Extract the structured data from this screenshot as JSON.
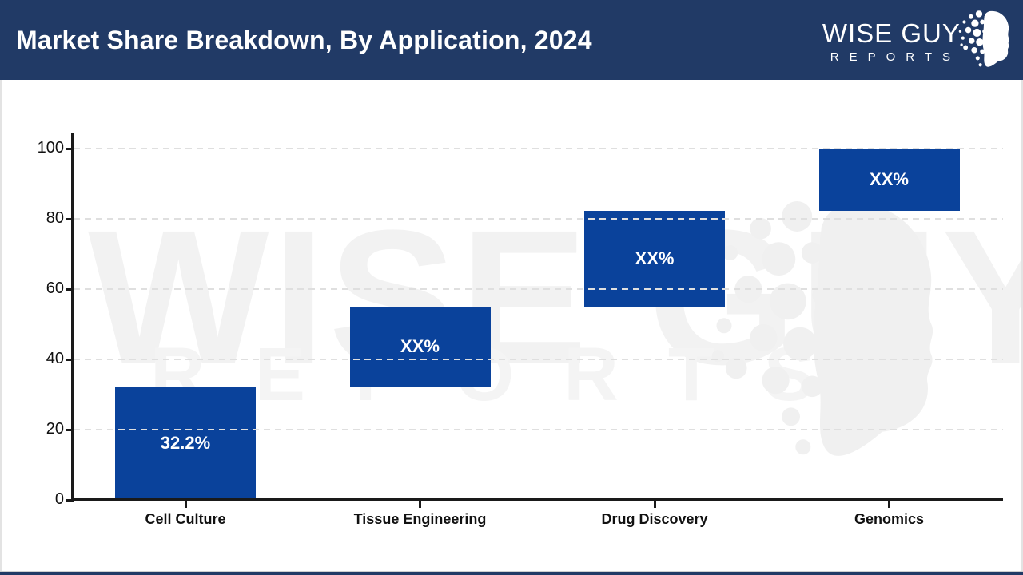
{
  "header": {
    "title": "Market Share Breakdown, By Application, 2024",
    "logo": {
      "line1": "WISE GUY",
      "line2": "REPORTS"
    }
  },
  "watermark": {
    "line1": "WISE GUY",
    "line2": "REPORTS"
  },
  "chart_data": {
    "type": "bar",
    "subtype": "waterfall",
    "title": "Market Share Breakdown, By Application, 2024",
    "categories": [
      "Cell Culture",
      "Tissue Engineering",
      "Drug Discovery",
      "Genomics"
    ],
    "segments": [
      {
        "category": "Cell Culture",
        "start": 0,
        "end": 32.2,
        "label": "32.2%"
      },
      {
        "category": "Tissue Engineering",
        "start": 32.2,
        "end": 55.0,
        "label": "XX%"
      },
      {
        "category": "Drug Discovery",
        "start": 55.0,
        "end": 82.3,
        "label": "XX%"
      },
      {
        "category": "Genomics",
        "start": 82.3,
        "end": 100.0,
        "label": "XX%"
      }
    ],
    "yticks": [
      0,
      20,
      40,
      60,
      80,
      100
    ],
    "ylim": [
      0,
      105
    ],
    "xlabel": "",
    "ylabel": "",
    "grid": "horizontal-dashed",
    "legend": "none",
    "bar_color": "#0a429b",
    "label_color": "#ffffff",
    "axis_color": "#1a1a1a",
    "gridline_color": "#dfdfdf"
  },
  "colors": {
    "header_bg": "#213a66",
    "footer_bg": "#213a66",
    "watermark": "#f2f2f2"
  }
}
